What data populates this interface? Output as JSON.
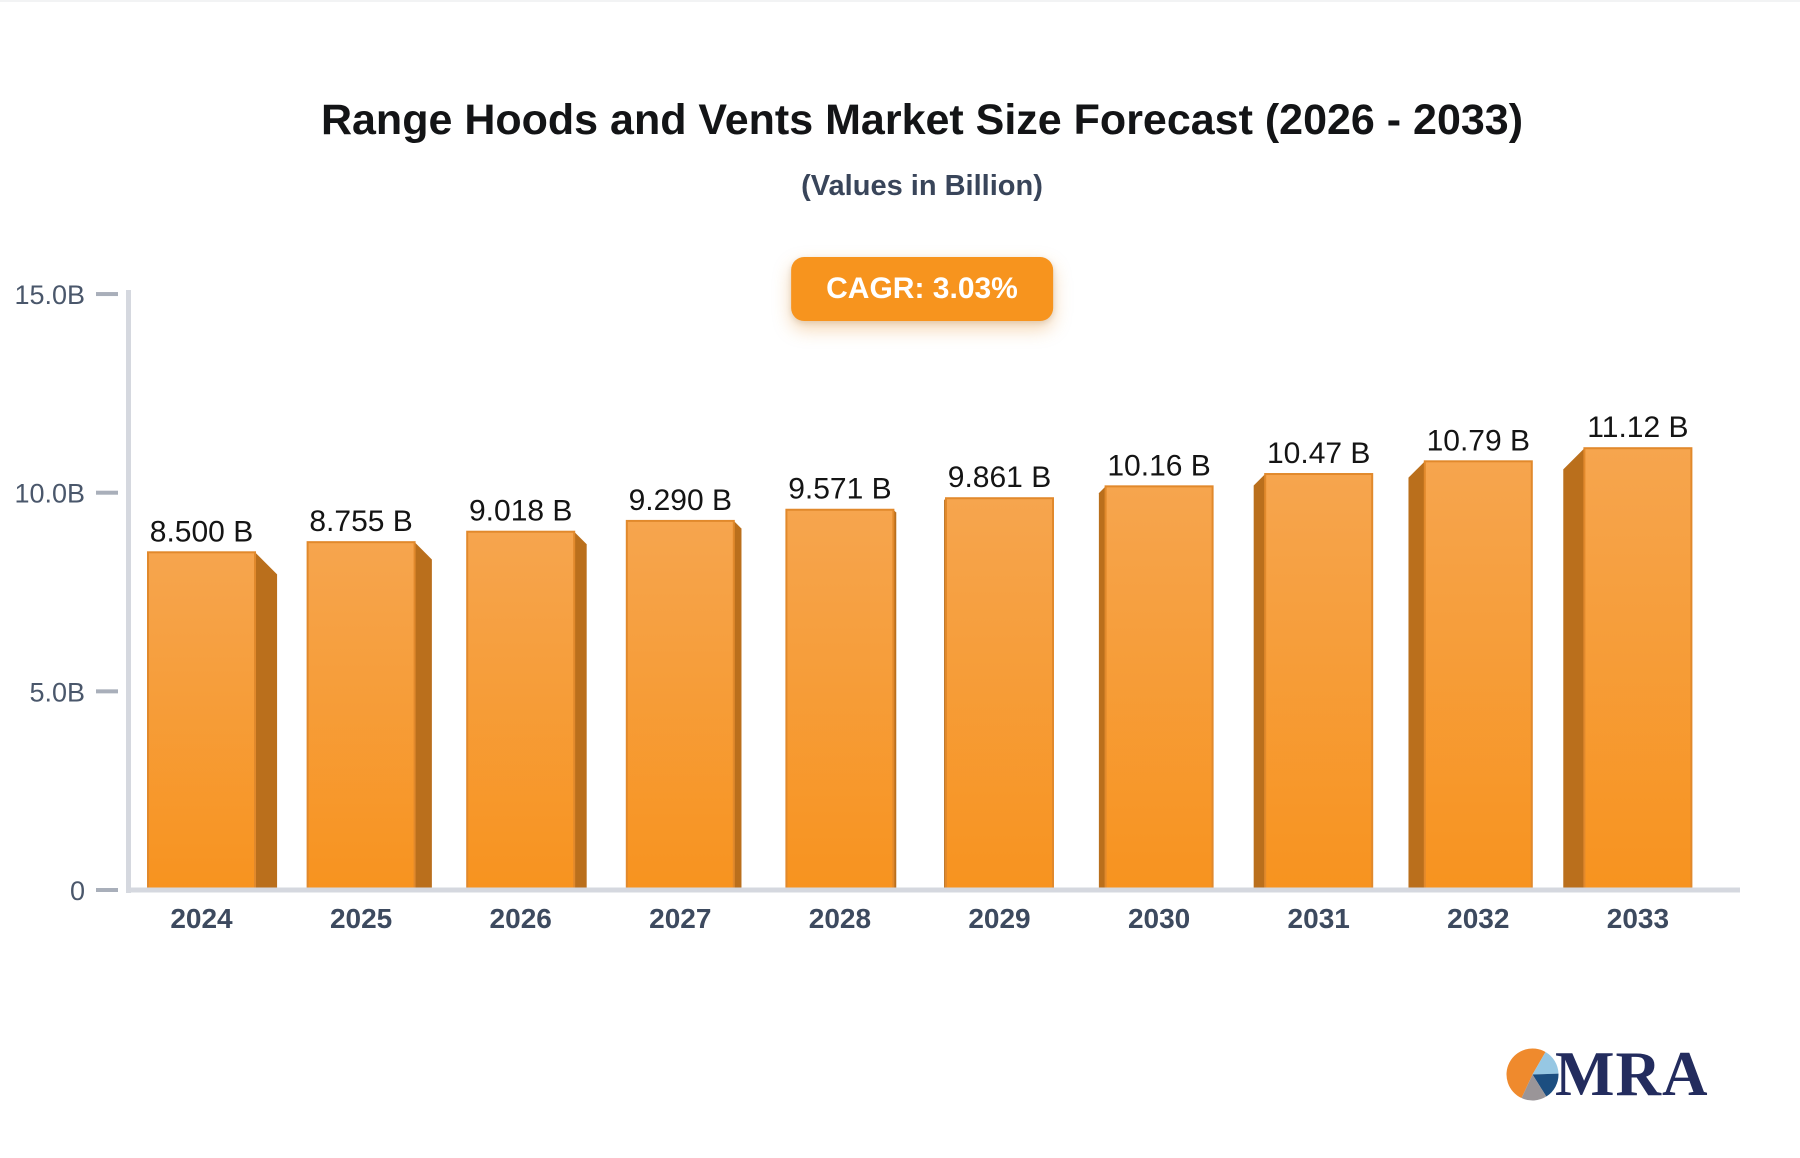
{
  "chart_data": {
    "type": "bar",
    "title": "Range Hoods and Vents Market Size Forecast (2026 - 2033)",
    "subtitle": "(Values in Billion)",
    "annotation": "CAGR: 3.03%",
    "categories": [
      "2024",
      "2025",
      "2026",
      "2027",
      "2028",
      "2029",
      "2030",
      "2031",
      "2032",
      "2033"
    ],
    "values": [
      8.5,
      8.755,
      9.018,
      9.29,
      9.571,
      9.861,
      10.16,
      10.47,
      10.79,
      11.12
    ],
    "value_labels": [
      "8.500 B",
      "8.755 B",
      "9.018 B",
      "9.290 B",
      "9.571 B",
      "9.861 B",
      "10.16 B",
      "10.47 B",
      "10.79 B",
      "11.12 B"
    ],
    "unit": "B",
    "xlabel": "",
    "ylabel": "",
    "ylim": [
      0,
      15
    ],
    "yticks": [
      {
        "value": 0,
        "label": "0"
      },
      {
        "value": 5,
        "label": "5.0B"
      },
      {
        "value": 10,
        "label": "10.0B"
      },
      {
        "value": 15,
        "label": "15.0B"
      }
    ],
    "grid": false,
    "legend": false,
    "bar_style": "3d-perspective-center-vanishing",
    "colors": {
      "bar_face_top": "#F6A54E",
      "bar_face_bottom": "#F7931F",
      "bar_face_stroke": "#E1892C",
      "bar_side": "#BA6F1C",
      "axis_line": "#D5D8DF",
      "tick_dash": "#A9AFBA",
      "tick_label": "#4A576B",
      "year_label": "#3D4A5F",
      "value_label": "#141414",
      "badge_bg": "#F7941E",
      "badge_text": "#FFFFFF"
    }
  },
  "logo": {
    "text": "MRA",
    "text_color": "#232C5E",
    "pie": {
      "orange": "#EF8A2D",
      "light_blue": "#96C7E3",
      "navy": "#1C4E80",
      "gray": "#9A9598"
    }
  }
}
